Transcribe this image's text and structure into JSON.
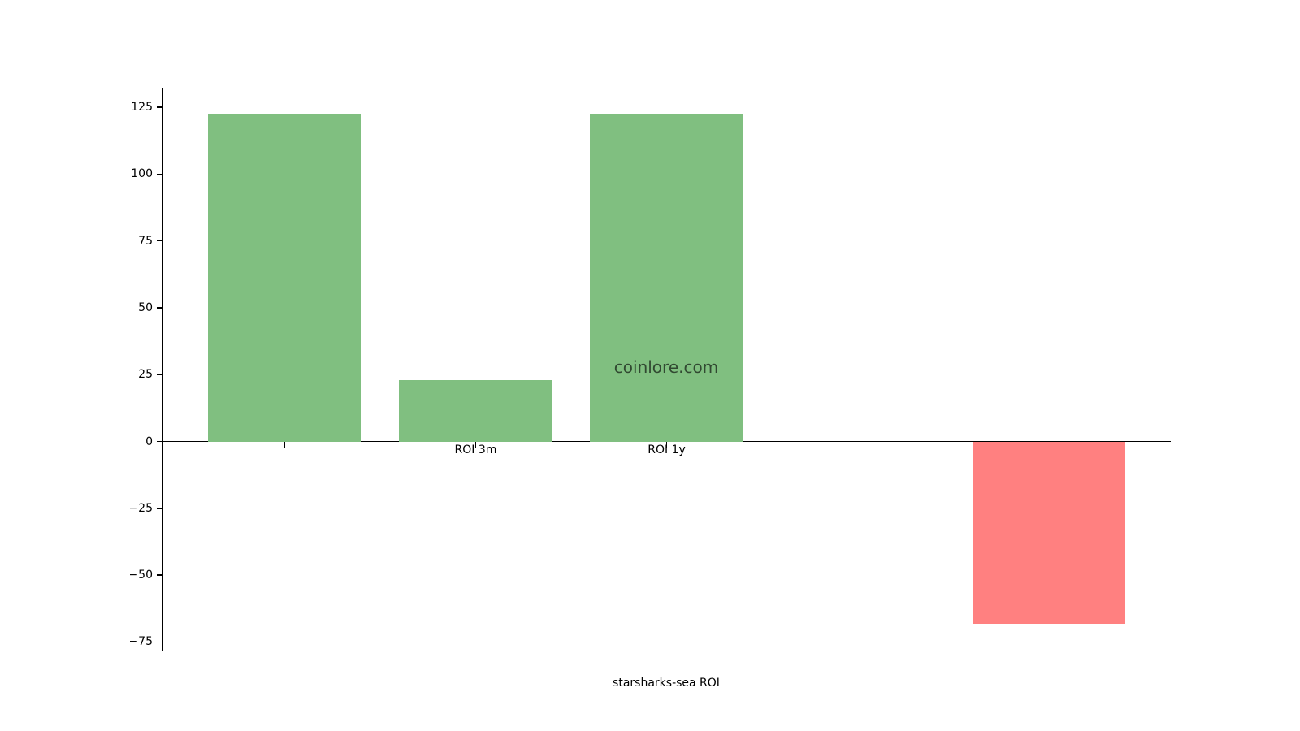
{
  "figure": {
    "background": "#ffffff",
    "watermark": "coinlore.com"
  },
  "chart_data": {
    "type": "bar",
    "title": "starsharks-sea ROI",
    "categories": [
      "",
      "ROI 3m",
      "ROI 1y",
      "",
      ""
    ],
    "values": [
      122.5,
      23,
      122.5,
      0,
      -68.2
    ],
    "bar_width": 0.8,
    "xlim": [
      -0.64,
      4.64
    ],
    "ylim": [
      -78.2,
      132.3
    ],
    "yticks": {
      "values": [
        125,
        100,
        75,
        50,
        25,
        0,
        -25,
        -50,
        -75
      ],
      "labels": [
        "125",
        "100",
        "75",
        "50",
        "25",
        "0",
        "−25",
        "−50",
        "−75"
      ]
    },
    "xticks": {
      "positions": [
        0,
        1,
        2
      ],
      "labels": [
        "",
        "ROI 3m",
        "ROI 1y"
      ]
    },
    "grid": false,
    "legend": "none",
    "colors": {
      "positive": "#80bf80",
      "negative": "#ff8080",
      "axis": "#000000",
      "text": "#000000"
    },
    "xlabel": "",
    "ylabel": ""
  }
}
